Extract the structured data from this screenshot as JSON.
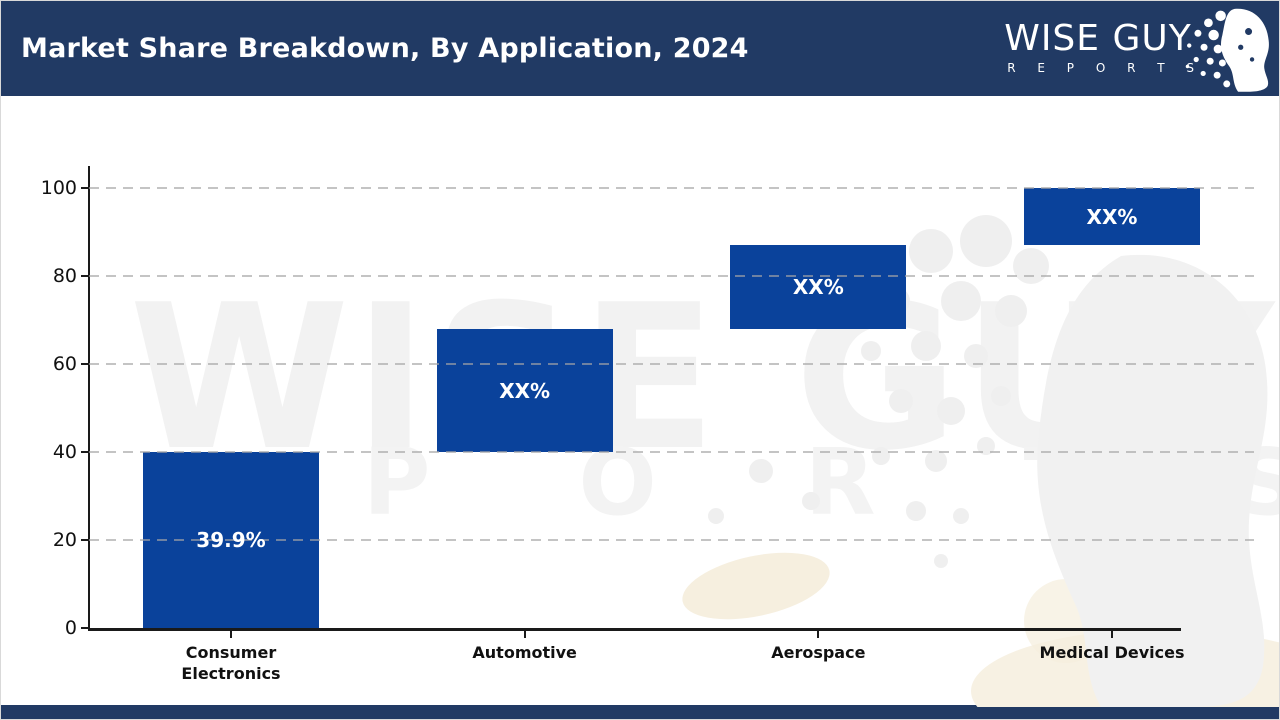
{
  "header": {
    "title": "Market Share Breakdown, By Application, 2024",
    "logo": {
      "line1": "WISE GUY",
      "line2": "R E P O R T S"
    }
  },
  "watermark": {
    "line1": "WISE GUY",
    "line2": "P O R T S"
  },
  "chart_data": {
    "type": "bar",
    "subtype": "waterfall-stacked",
    "title": "Market Share Breakdown, By Application, 2024",
    "categories": [
      "Consumer Electronics",
      "Automotive",
      "Aerospace",
      "Medical Devices"
    ],
    "segments": [
      {
        "category": "Consumer Electronics",
        "start": 0,
        "end": 39.9,
        "label": "39.9%"
      },
      {
        "category": "Automotive",
        "start": 39.9,
        "end": 68,
        "label": "XX%"
      },
      {
        "category": "Aerospace",
        "start": 68,
        "end": 87,
        "label": "XX%"
      },
      {
        "category": "Medical Devices",
        "start": 87,
        "end": 100,
        "label": "XX%"
      }
    ],
    "ylim": [
      0,
      100
    ],
    "yticks": [
      0,
      20,
      40,
      60,
      80,
      100
    ],
    "grid": "horizontal-dashed",
    "legend": "none",
    "colors": {
      "bar": "#0a429b",
      "bar_label": "#ffffff",
      "axis": "#1a1a1a",
      "gridline": "#c9c9c9",
      "header_bg": "#213a64",
      "footer_bg": "#213a64",
      "watermark": "#f2f2f2"
    }
  }
}
